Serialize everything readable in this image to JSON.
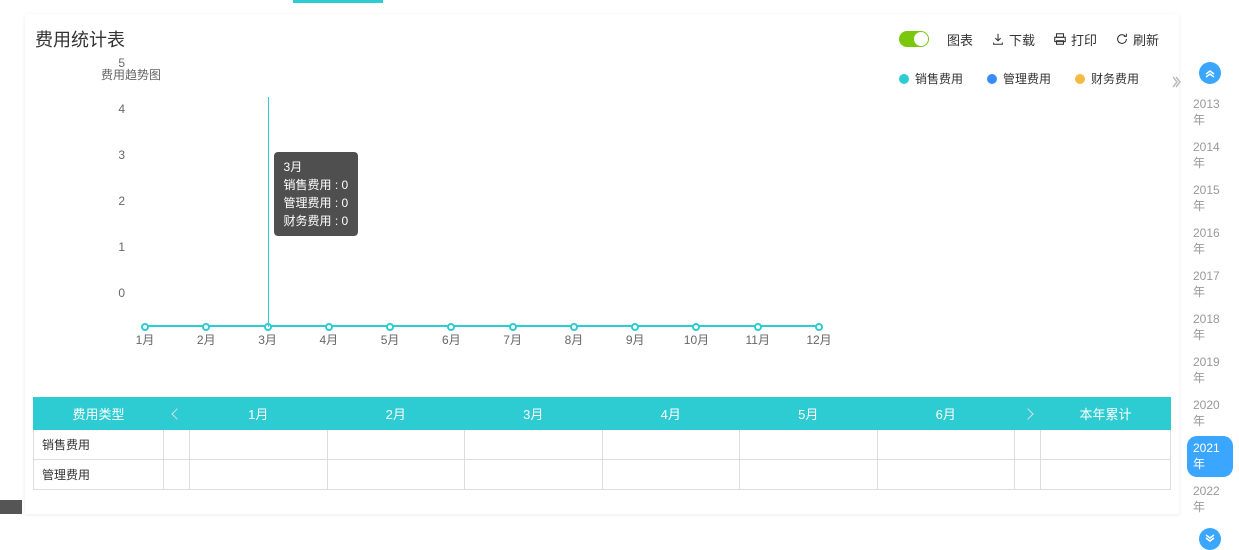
{
  "header": {
    "title": "费用统计表",
    "toggle_label": "图表",
    "download_label": "下载",
    "print_label": "打印",
    "refresh_label": "刷新"
  },
  "chart": {
    "type": "line",
    "small_title": "费用趋势图",
    "series": [
      {
        "name": "销售费用",
        "color": "#2dccd3",
        "values": [
          0,
          0,
          0,
          0,
          0,
          0,
          0,
          0,
          0,
          0,
          0,
          0
        ]
      },
      {
        "name": "管理费用",
        "color": "#3a8bff",
        "values": [
          0,
          0,
          0,
          0,
          0,
          0,
          0,
          0,
          0,
          0,
          0,
          0
        ]
      },
      {
        "name": "财务费用",
        "color": "#f5b942",
        "values": [
          0,
          0,
          0,
          0,
          0,
          0,
          0,
          0,
          0,
          0,
          0,
          0
        ]
      }
    ],
    "x_categories": [
      "1月",
      "2月",
      "3月",
      "4月",
      "5月",
      "6月",
      "7月",
      "8月",
      "9月",
      "10月",
      "11月",
      "12月"
    ],
    "ylim": [
      0,
      5
    ],
    "ytick_step": 1,
    "background_color": "#ffffff",
    "axis_color": "#cccccc",
    "text_color": "#666666",
    "marker_style": "hollow-circle",
    "line_width": 2,
    "hover_index": 2,
    "tooltip": {
      "title": "3月",
      "rows": [
        {
          "label": "销售费用",
          "value": "0"
        },
        {
          "label": "管理费用",
          "value": "0"
        },
        {
          "label": "财务费用",
          "value": "0"
        }
      ]
    }
  },
  "table": {
    "row_label_header": "费用类型",
    "month_columns": [
      "1月",
      "2月",
      "3月",
      "4月",
      "5月",
      "6月"
    ],
    "ytd_header": "本年累计",
    "rows": [
      {
        "label": "销售费用"
      },
      {
        "label": "管理费用"
      }
    ],
    "header_bg": "#2dccd3",
    "header_fg": "#ffffff",
    "border_color": "#dddddd"
  },
  "years": {
    "items": [
      "2013年",
      "2014年",
      "2015年",
      "2016年",
      "2017年",
      "2018年",
      "2019年",
      "2020年",
      "2021年",
      "2022年"
    ],
    "active": "2021年",
    "scroll_btn_color": "#3aa6ff"
  }
}
